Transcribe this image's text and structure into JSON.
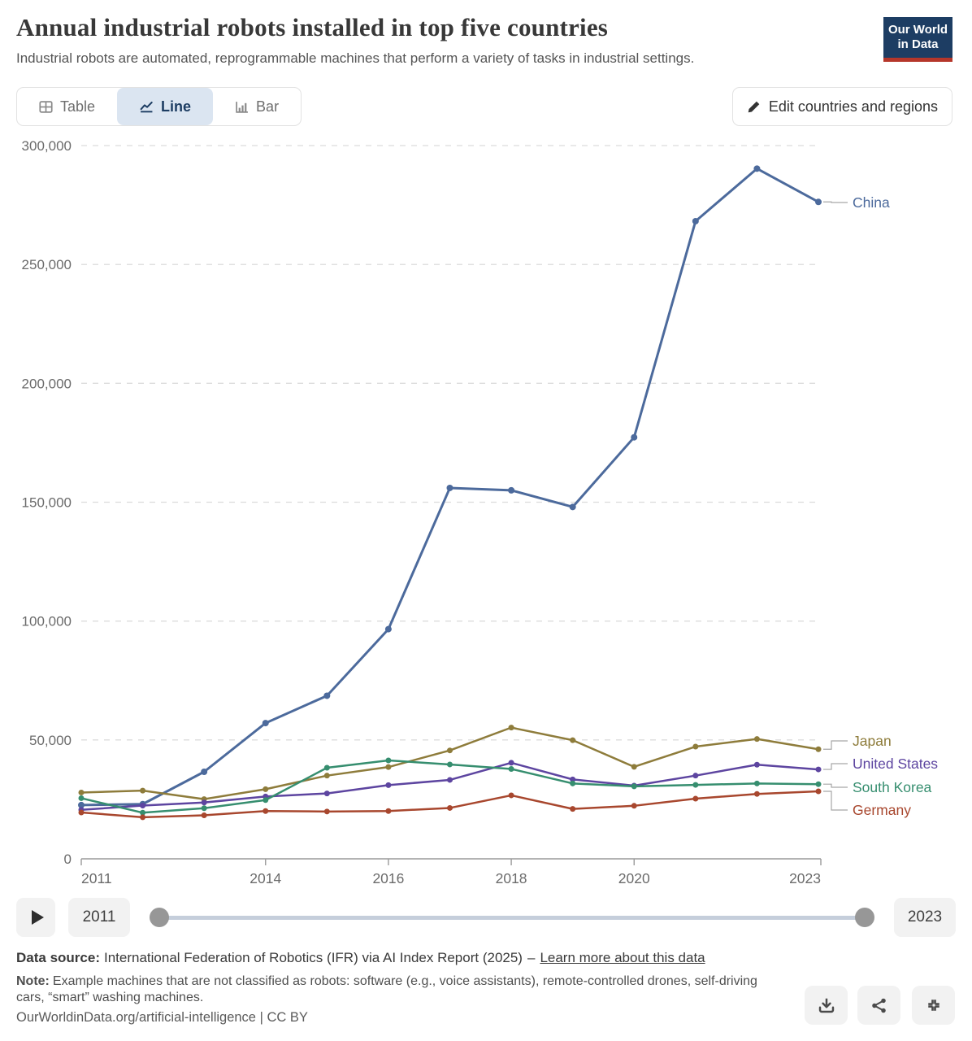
{
  "header": {
    "title": "Annual industrial robots installed in top five countries",
    "subtitle": "Industrial robots are automated, reprogrammable machines that perform a variety of tasks in industrial settings.",
    "logo_line1": "Our World",
    "logo_line2": "in Data"
  },
  "toolbar": {
    "tabs": [
      {
        "label": "Table",
        "icon": "table-icon",
        "active": false
      },
      {
        "label": "Line",
        "icon": "line-chart-icon",
        "active": true
      },
      {
        "label": "Bar",
        "icon": "bar-chart-icon",
        "active": false
      }
    ],
    "edit_label": "Edit countries and regions",
    "edit_icon": "pencil-icon"
  },
  "chart_data": {
    "type": "line",
    "x": [
      2011,
      2012,
      2013,
      2014,
      2015,
      2016,
      2017,
      2018,
      2019,
      2020,
      2021,
      2022,
      2023
    ],
    "series": [
      {
        "name": "China",
        "color": "#4c6a9c",
        "values": [
          22600,
          23000,
          36600,
          57100,
          68600,
          96600,
          156000,
          155000,
          148000,
          177300,
          268200,
          290300,
          276300
        ]
      },
      {
        "name": "Japan",
        "color": "#8e7c3b",
        "values": [
          27900,
          28700,
          25100,
          29300,
          35000,
          38600,
          45600,
          55200,
          49900,
          38700,
          47200,
          50400,
          46100
        ]
      },
      {
        "name": "United States",
        "color": "#5d45a0",
        "values": [
          20600,
          22400,
          23700,
          26200,
          27500,
          31000,
          33200,
          40400,
          33400,
          30800,
          35000,
          39600,
          37600
        ]
      },
      {
        "name": "South Korea",
        "color": "#368e6f",
        "values": [
          25500,
          19400,
          21300,
          24700,
          38300,
          41400,
          39700,
          37800,
          31700,
          30500,
          31100,
          31700,
          31400
        ]
      },
      {
        "name": "Germany",
        "color": "#a8472e",
        "values": [
          19500,
          17500,
          18300,
          20100,
          19900,
          20100,
          21400,
          26700,
          21000,
          22300,
          25300,
          27300,
          28400
        ]
      }
    ],
    "ylim": [
      0,
      300000
    ],
    "ytick_step": 50000,
    "ytick_labels": [
      "0",
      "50,000",
      "100,000",
      "150,000",
      "200,000",
      "250,000",
      "300,000"
    ],
    "xticks": [
      2011,
      2014,
      2016,
      2018,
      2020,
      2023
    ],
    "xtick_labels": [
      "2011",
      "2014",
      "2016",
      "2018",
      "2020",
      "2023"
    ],
    "grid": "horizontal-dashed",
    "legend_position": "right-of-line-ends"
  },
  "timeline": {
    "start_year": "2011",
    "end_year": "2023",
    "play_icon": "play-icon"
  },
  "footer": {
    "data_source_label": "Data source:",
    "data_source_value": "International Federation of Robotics (IFR) via AI Index Report (2025)",
    "dash": "–",
    "learn_more": "Learn more about this data",
    "note_label": "Note:",
    "note_value": "Example machines that are not classified as robots: software (e.g., voice assistants), remote-controlled drones, self-driving cars, “smart” washing machines.",
    "url_line": "OurWorldinData.org/artificial-intelligence | CC BY",
    "action_icons": [
      "download-icon",
      "share-icon",
      "compress-icon"
    ]
  },
  "colors": {
    "logo_bg": "#1d3d63",
    "logo_underline": "#b5362a",
    "active_tab_bg": "#dbe5f1",
    "active_tab_text": "#1d3d63",
    "gridline": "#dcdcdc",
    "axis": "#9a9a9a",
    "tick_text": "#6b6b6b"
  }
}
